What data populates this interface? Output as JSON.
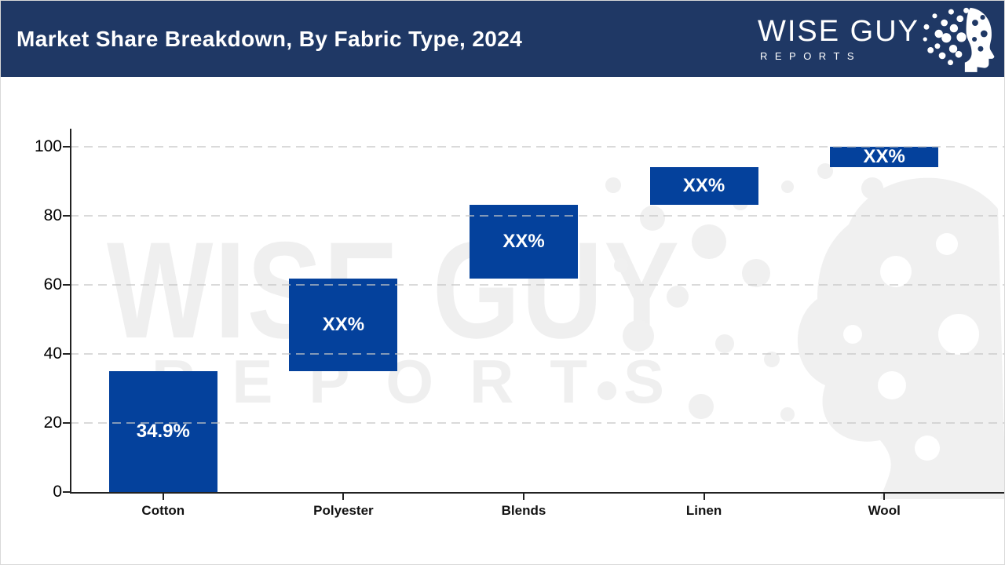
{
  "header": {
    "title": "Market Share Breakdown, By Fabric Type, 2024",
    "bg_color": "#1f3865",
    "logo": {
      "line1": "WISE GUY",
      "line2": "REPORTS"
    }
  },
  "watermark": {
    "line1": "WISE GUY",
    "line2": "REPORTS"
  },
  "chart_data": {
    "type": "bar",
    "subtype": "floating-waterfall",
    "title": "Market Share Breakdown, By Fabric Type, 2024",
    "categories": [
      "Cotton",
      "Polyester",
      "Blends",
      "Linen",
      "Wool"
    ],
    "segments": [
      {
        "category": "Cotton",
        "start": 0,
        "end": 34.9,
        "label": "34.9%"
      },
      {
        "category": "Polyester",
        "start": 34.9,
        "end": 61.8,
        "label": "XX%"
      },
      {
        "category": "Blends",
        "start": 61.8,
        "end": 83.2,
        "label": "XX%"
      },
      {
        "category": "Linen",
        "start": 83.2,
        "end": 94.1,
        "label": "XX%"
      },
      {
        "category": "Wool",
        "start": 94.1,
        "end": 100,
        "label": "XX%"
      }
    ],
    "ylim": [
      0,
      100
    ],
    "yticks": [
      0,
      20,
      40,
      60,
      80,
      100
    ],
    "grid": "dashed horizontal lines drawn over bars",
    "legend": null,
    "xlabel": "",
    "ylabel": "",
    "bar_color": "#04419c",
    "bar_label_color": "#ffffff",
    "axis_color": "#222222",
    "gridline_color": "#dcdcdc"
  }
}
